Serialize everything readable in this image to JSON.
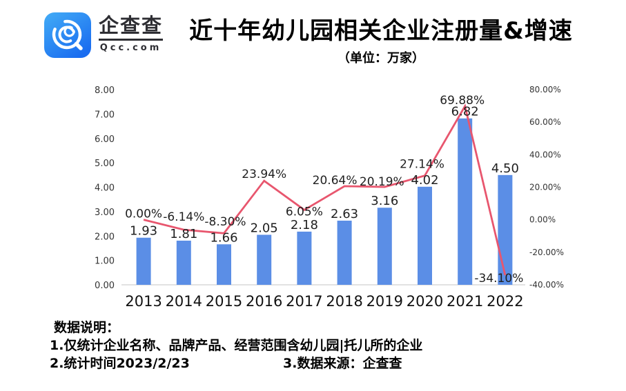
{
  "header": {
    "logo": {
      "brand": "企查查",
      "domain": "Qcc.com"
    },
    "title": "近十年幼儿园相关企业注册量&增速",
    "subtitle": "（单位：万家）"
  },
  "chart_data": {
    "type": "bar",
    "title": "近十年幼儿园相关企业注册量&增速",
    "subtitle": "（单位：万家）",
    "categories": [
      "2013",
      "2014",
      "2015",
      "2016",
      "2017",
      "2018",
      "2019",
      "2020",
      "2021",
      "2022"
    ],
    "series": [
      {
        "name": "注册量（万家）",
        "type": "bar",
        "color": "#5b8ee6",
        "values": [
          1.93,
          1.81,
          1.66,
          2.05,
          2.18,
          2.63,
          3.16,
          4.02,
          6.82,
          4.5
        ],
        "labels": [
          "1.93",
          "1.81",
          "1.66",
          "2.05",
          "2.18",
          "2.63",
          "3.16",
          "4.02",
          "6.82",
          "4.50"
        ]
      },
      {
        "name": "增速",
        "type": "line",
        "color": "#e8566e",
        "values": [
          0.0,
          -6.14,
          -8.3,
          23.94,
          6.05,
          20.64,
          20.19,
          27.14,
          69.88,
          -34.1
        ],
        "labels": [
          "0.00%",
          "-6.14%",
          "-8.30%",
          "23.94%",
          "6.05%",
          "20.64%",
          "20.19%",
          "27.14%",
          "69.88%",
          "-34.10%"
        ]
      }
    ],
    "left_axis": {
      "min": 0,
      "max": 8,
      "step": 1,
      "tick_labels": [
        "0.00",
        "1.00",
        "2.00",
        "3.00",
        "4.00",
        "5.00",
        "6.00",
        "7.00",
        "8.00"
      ]
    },
    "right_axis": {
      "min": -40,
      "max": 80,
      "step": 20,
      "tick_labels": [
        "-40.00%",
        "-20.00%",
        "0.00%",
        "20.00%",
        "40.00%",
        "60.00%",
        "80.00%"
      ]
    },
    "grid": false,
    "legend": "none",
    "baseline_color": "#d9d9d9"
  },
  "footer": {
    "heading": "数据说明：",
    "note1": "1.仅统计企业名称、品牌产品、经营范围含幼儿园|托儿所的企业",
    "note2": "2.统计时间2023/2/23",
    "note3": "3.数据来源：企查查"
  }
}
